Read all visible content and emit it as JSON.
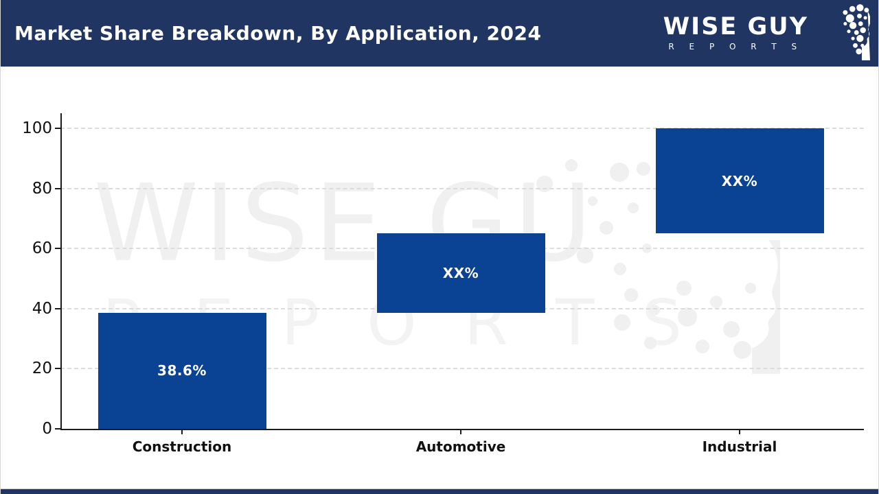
{
  "header": {
    "title": "Market Share Breakdown, By Application, 2024",
    "bg_color": "#203561",
    "logo": {
      "line1": "WISE GUY",
      "line2": "R E P O R T S"
    }
  },
  "watermark": {
    "line1": "WISE GU",
    "line2": "R E P O R T S"
  },
  "chart_data": {
    "type": "bar",
    "subtype": "floating-waterfall",
    "title": "Market Share Breakdown, By Application, 2024",
    "categories": [
      "Construction",
      "Automotive",
      "Industrial"
    ],
    "bars": [
      {
        "category": "Construction",
        "start": 0,
        "end": 38.6,
        "label": "38.6%"
      },
      {
        "category": "Automotive",
        "start": 38.6,
        "end": 65,
        "label": "XX%"
      },
      {
        "category": "Industrial",
        "start": 65,
        "end": 100,
        "label": "XX%"
      }
    ],
    "yticks": [
      0,
      20,
      40,
      60,
      80,
      100
    ],
    "ylim": [
      0,
      105
    ],
    "grid": "horizontal-dashed",
    "legend": "none",
    "bar_color": "#0a4294",
    "bar_label_color": "#ffffff",
    "axis_color": "#1a1a1a",
    "grid_color": "#dcdcdc"
  }
}
